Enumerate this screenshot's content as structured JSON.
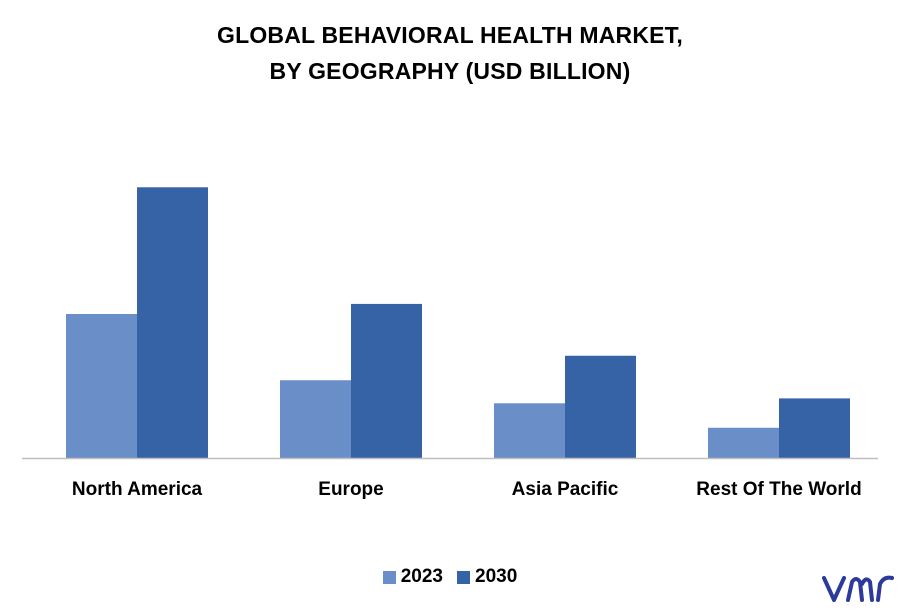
{
  "chart_data": {
    "type": "bar",
    "title": "GLOBAL BEHAVIORAL HEALTH MARKET,",
    "subtitle": "BY GEOGRAPHY (USD BILLION)",
    "categories": [
      "North America",
      "Europe",
      "Asia Pacific",
      "Rest Of The World"
    ],
    "series": [
      {
        "name": "2023",
        "values": [
          50.0,
          27.0,
          19.0,
          10.5
        ],
        "color": "#6a8ec8"
      },
      {
        "name": "2030",
        "values": [
          94.0,
          53.5,
          35.5,
          20.7
        ],
        "color": "#3563a6"
      }
    ],
    "ylim": [
      0,
      100
    ],
    "grid": false,
    "legend_position": "bottom-center",
    "axis_color": "#bfbfbf"
  },
  "branding": {
    "logo_icon": "vmr-logo-icon",
    "logo_color": "#2b3a9b"
  }
}
